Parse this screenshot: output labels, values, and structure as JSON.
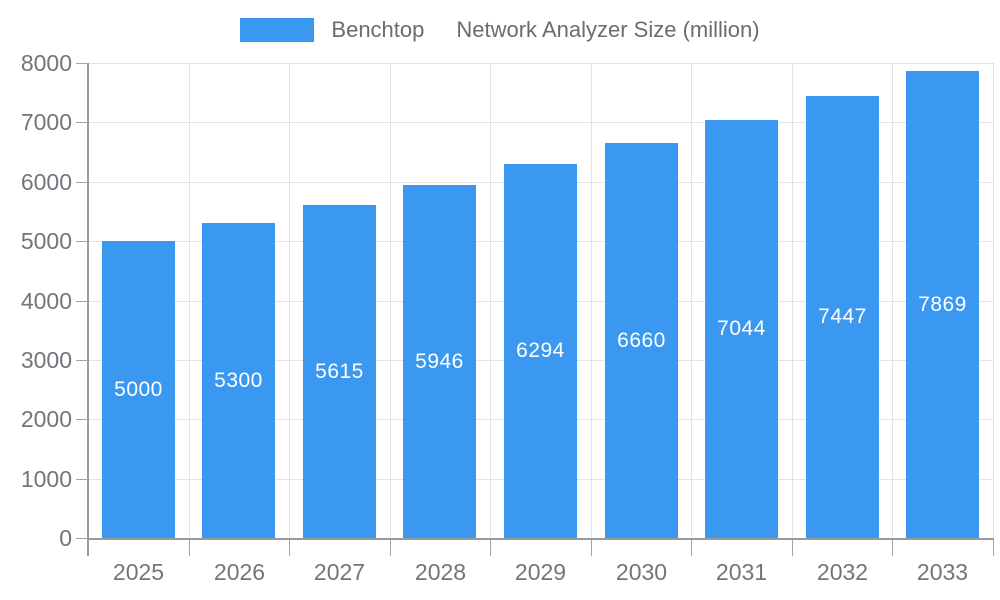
{
  "chart_data": {
    "type": "bar",
    "legend": {
      "label": "Benchtop",
      "position": "top-center"
    },
    "title": "Network Analyzer Size (million)",
    "categories": [
      "2025",
      "2026",
      "2027",
      "2028",
      "2029",
      "2030",
      "2031",
      "2032",
      "2033"
    ],
    "values": [
      5000,
      5300,
      5615,
      5946,
      6294,
      6660,
      7044,
      7447,
      7869
    ],
    "value_labels": [
      "5000",
      "5300",
      "5615",
      "5946",
      "6294",
      "6660",
      "7044",
      "7447",
      "7869"
    ],
    "ylim": [
      0,
      8000
    ],
    "ytick_interval": 1000,
    "yticks": [
      "0",
      "1000",
      "2000",
      "3000",
      "4000",
      "5000",
      "6000",
      "7000",
      "8000"
    ],
    "grid": {
      "horizontal": true,
      "vertical": true
    },
    "value_label_position": "inside-center",
    "colors": {
      "bar": "#3b98f0",
      "legend_swatch": "#3b98f0",
      "value_label": "#ffffff",
      "axis_line": "#9a9a9a",
      "tick": "#a6a6a6",
      "gridline": "#e3e3e7",
      "axis_label": "#74747c",
      "legend_text": "#6b6b72",
      "background": "#ffffff"
    }
  }
}
